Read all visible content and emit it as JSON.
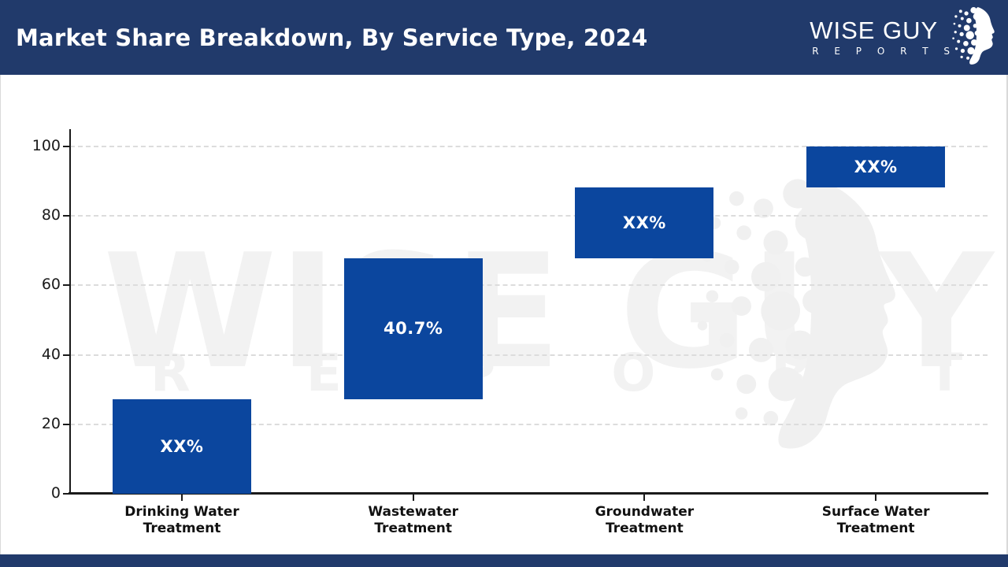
{
  "header": {
    "bg_color": "#213a6b",
    "title": "Market Share Breakdown, By Service Type, 2024",
    "logo": {
      "brand": "WISE GUY",
      "brand_sub": "R E P O R T S"
    }
  },
  "watermark": {
    "brand": "WISE GUY",
    "brand_sub": "R E P O R T S"
  },
  "chart_data": {
    "type": "bar",
    "variant": "waterfall",
    "title": "Market Share Breakdown, By Service Type, 2024",
    "categories": [
      "Drinking Water Treatment",
      "Wastewater Treatment",
      "Groundwater Treatment",
      "Surface Water Treatment"
    ],
    "category_lines": [
      [
        "Drinking Water",
        "Treatment"
      ],
      [
        "Wastewater",
        "Treatment"
      ],
      [
        "Groundwater",
        "Treatment"
      ],
      [
        "Surface Water",
        "Treatment"
      ]
    ],
    "bars": [
      {
        "category": "Drinking Water Treatment",
        "start": 0,
        "end": 27.2,
        "label": "XX%"
      },
      {
        "category": "Wastewater Treatment",
        "start": 27.2,
        "end": 67.9,
        "label": "40.7%"
      },
      {
        "category": "Groundwater Treatment",
        "start": 67.9,
        "end": 88.1,
        "label": "XX%"
      },
      {
        "category": "Surface Water Treatment",
        "start": 88.1,
        "end": 99.9,
        "label": "XX%"
      }
    ],
    "yticks": [
      0,
      20,
      40,
      60,
      80,
      100
    ],
    "ylim": [
      0,
      105
    ],
    "xlabel": "",
    "ylabel": "",
    "legend": "none",
    "grid": "horizontal-dashed",
    "bar_color": "#0b469e",
    "bar_label_color": "#ffffff",
    "axis_color": "#1a1a1a",
    "grid_color": "#dcdcdc"
  },
  "footer": {
    "bg_color": "#213a6b"
  }
}
